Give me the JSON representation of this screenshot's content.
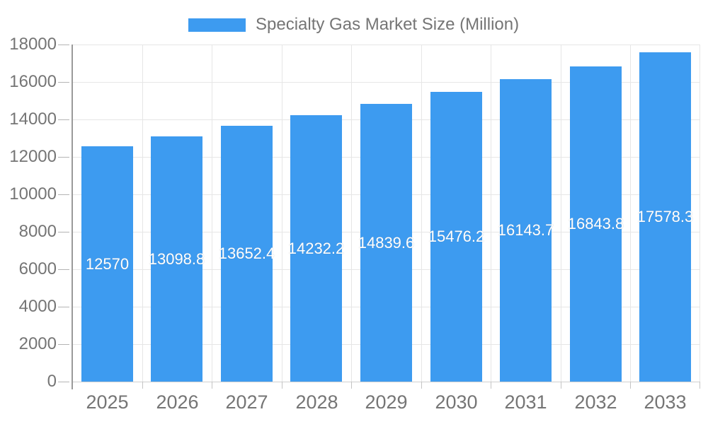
{
  "chart_data": {
    "type": "bar",
    "title": "Specialty Gas Market Size (Million)",
    "legend": {
      "position": "top",
      "entries": [
        "Specialty Gas Market Size (Million)"
      ]
    },
    "categories": [
      "2025",
      "2026",
      "2027",
      "2028",
      "2029",
      "2030",
      "2031",
      "2032",
      "2033"
    ],
    "series": [
      {
        "name": "Specialty Gas Market Size (Million)",
        "values": [
          12570,
          13098.8,
          13652.4,
          14232.2,
          14839.6,
          15476.2,
          16143.7,
          16843.8,
          17578.3
        ]
      }
    ],
    "value_labels": [
      "12570",
      "13098.8",
      "13652.4",
      "14232.2",
      "14839.6",
      "15476.2",
      "16143.7",
      "16843.8",
      "17578.3"
    ],
    "xlabel": "",
    "ylabel": "",
    "ylim": [
      0,
      18000
    ],
    "y_ticks": [
      0,
      2000,
      4000,
      6000,
      8000,
      10000,
      12000,
      14000,
      16000,
      18000
    ],
    "grid": "horizontal and vertical, light gray",
    "colors": {
      "bar": "#3d9bf0",
      "value_label": "#ffffff",
      "axis_text": "#757575",
      "grid_line": "#e6e6e6",
      "axis_line": "#9a9a9a"
    }
  }
}
